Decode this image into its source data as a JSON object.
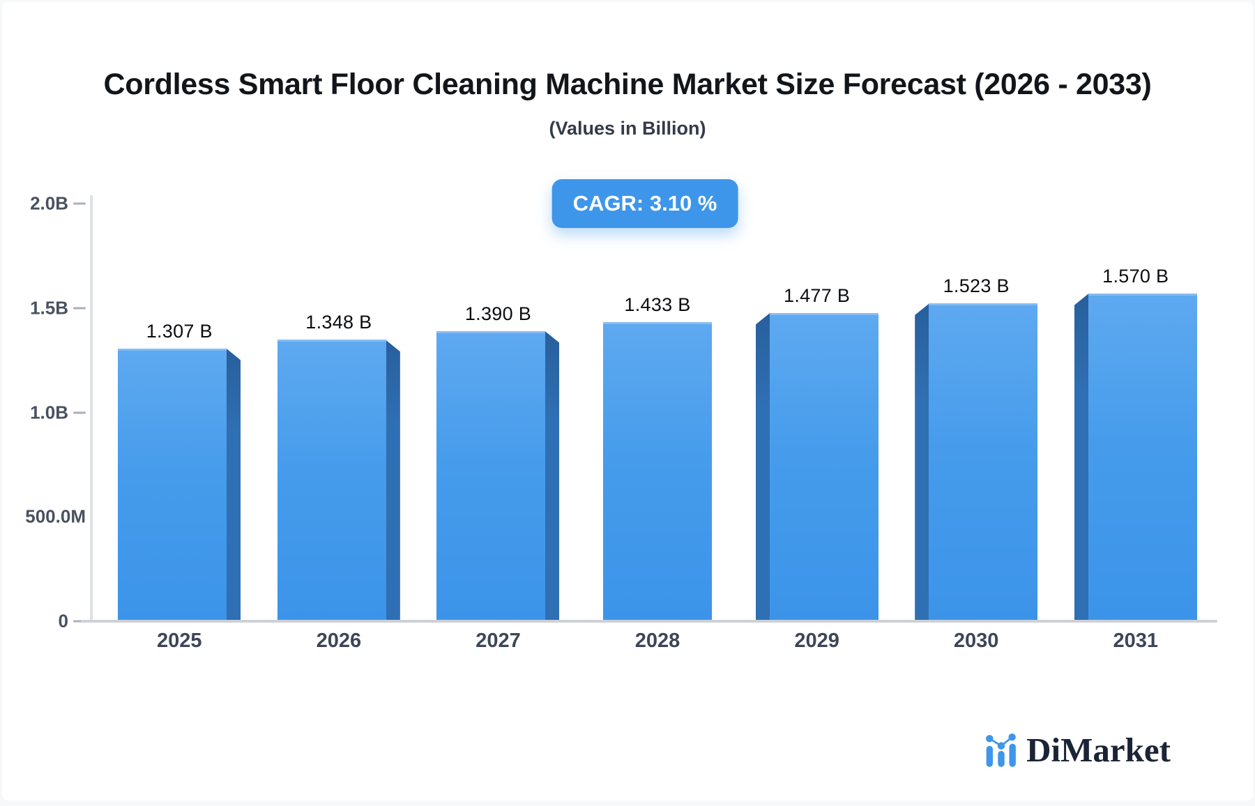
{
  "page": {
    "background": "#f6f8fa",
    "card_background": "#ffffff"
  },
  "header": {
    "title": "Cordless Smart Floor Cleaning Machine Market Size Forecast (2026 - 2033)",
    "subtitle": "(Values in Billion)"
  },
  "cagr_badge": {
    "label": "CAGR: 3.10 %",
    "background": "#3e96ea",
    "text_color": "#ffffff"
  },
  "chart_data": {
    "type": "bar",
    "title": "Cordless Smart Floor Cleaning Machine Market Size Forecast (2026 - 2033)",
    "subtitle": "(Values in Billion)",
    "unit": "Billion USD",
    "categories": [
      "2025",
      "2026",
      "2027",
      "2028",
      "2029",
      "2030",
      "2031"
    ],
    "values": [
      1.307,
      1.348,
      1.39,
      1.433,
      1.477,
      1.523,
      1.57
    ],
    "value_labels": [
      "1.307 B",
      "1.348 B",
      "1.390 B",
      "1.433 B",
      "1.477 B",
      "1.523 B",
      "1.570 B"
    ],
    "xlabel": "",
    "ylabel": "",
    "ylim": [
      0,
      2.0
    ],
    "y_ticks": [
      {
        "label": "2.0B"
      },
      {
        "label": "1.5B"
      },
      {
        "label": "1.0B"
      },
      {
        "label": "500.0M"
      },
      {
        "label": "0"
      }
    ],
    "grid": false,
    "legend": false,
    "bar_face_color": "#469ceb",
    "bar_side_color": "#2f6fb3",
    "bar_top_edge_color": "#85bdf3",
    "axis_line_color": "#cdd1d7"
  },
  "footer": {
    "brand_name": "DiMarket",
    "brand_text_color": "#1b2336",
    "brand_icon": "bar-line-chart-icon",
    "brand_icon_color": "#3e96ea"
  }
}
